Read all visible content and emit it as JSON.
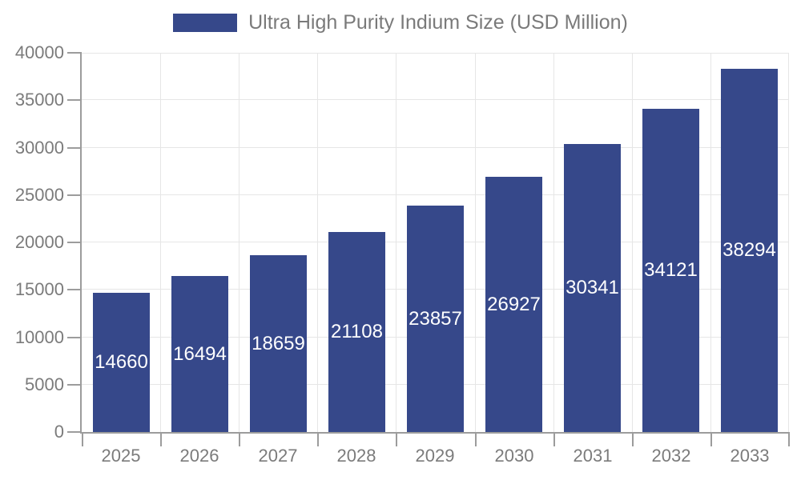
{
  "legend": {
    "label": "Ultra High Purity Indium Size (USD Million)",
    "swatch_color": "#36488a"
  },
  "chart_data": {
    "type": "bar",
    "title": "",
    "xlabel": "",
    "ylabel": "",
    "categories": [
      "2025",
      "2026",
      "2027",
      "2028",
      "2029",
      "2030",
      "2031",
      "2032",
      "2033"
    ],
    "values": [
      14660,
      16494,
      18659,
      21108,
      23857,
      26927,
      30341,
      34121,
      38294
    ],
    "series_name": "Ultra High Purity Indium Size (USD Million)",
    "ylim": [
      0,
      40000
    ],
    "yticks": [
      0,
      5000,
      10000,
      15000,
      20000,
      25000,
      30000,
      35000,
      40000
    ],
    "grid": true,
    "legend_position": "top",
    "value_labels": "inside-center"
  },
  "colors": {
    "bar": "#36488a",
    "grid": "#e6e6e6",
    "axis": "#9c9c9c",
    "tick_label": "#7b7b7b",
    "legend_text": "#7a7a7a",
    "value_label": "#ffffff",
    "background": "#ffffff"
  }
}
